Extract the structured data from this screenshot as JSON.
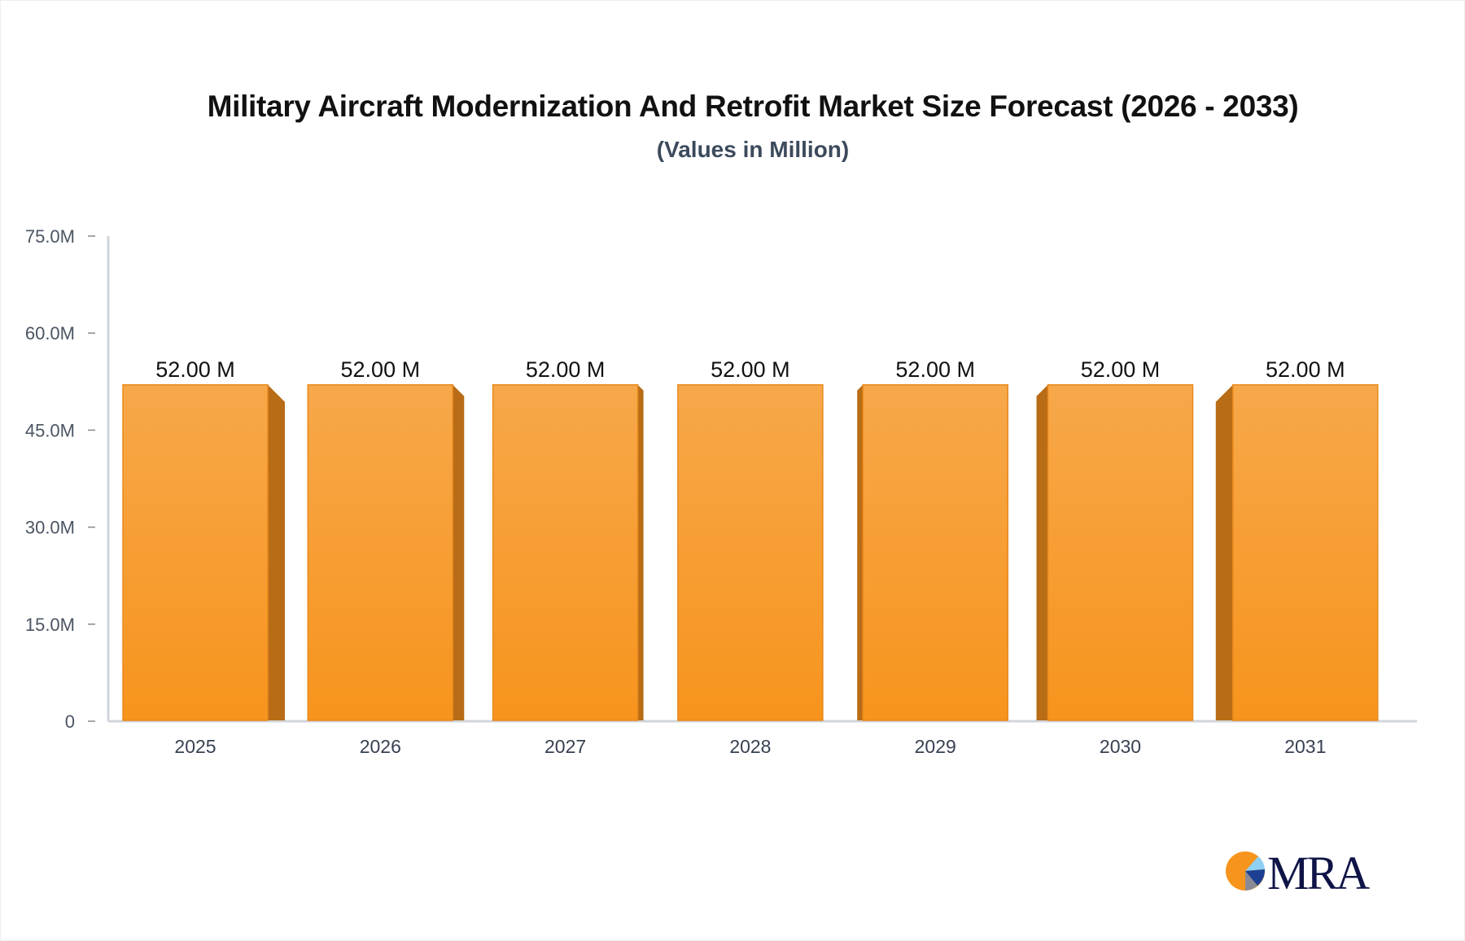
{
  "chart_data": {
    "type": "bar",
    "title": "Military Aircraft Modernization And Retrofit Market Size Forecast (2026 - 2033)",
    "subtitle": "(Values in Million)",
    "categories": [
      "2025",
      "2026",
      "2027",
      "2028",
      "2029",
      "2030",
      "2031"
    ],
    "values": [
      52.0,
      52.0,
      52.0,
      52.0,
      52.0,
      52.0,
      52.0
    ],
    "data_labels": [
      "52.00 M",
      "52.00 M",
      "52.00 M",
      "52.00 M",
      "52.00 M",
      "52.00 M",
      "52.00 M"
    ],
    "ylim": [
      0,
      75
    ],
    "y_ticks": [
      0,
      15,
      30,
      45,
      60,
      75
    ],
    "y_tick_labels": [
      "0",
      "15.0M",
      "30.0M",
      "45.0M",
      "60.0M",
      "75.0M"
    ],
    "xlabel": "",
    "ylabel": "",
    "grid": false,
    "style": "3d-bar",
    "colors": {
      "bar_top": "#f7a84a",
      "bar_bottom": "#f7941d",
      "bar_border": "#e8891c",
      "bar_side": "#b96c16",
      "axis": "#d1d5db"
    }
  },
  "logo": {
    "text": "MRA",
    "colors": {
      "orange": "#f7941d",
      "navy": "#0f1446",
      "light_blue": "#8fd0f5",
      "blue": "#1c3f94",
      "gray": "#8a8a96"
    }
  }
}
